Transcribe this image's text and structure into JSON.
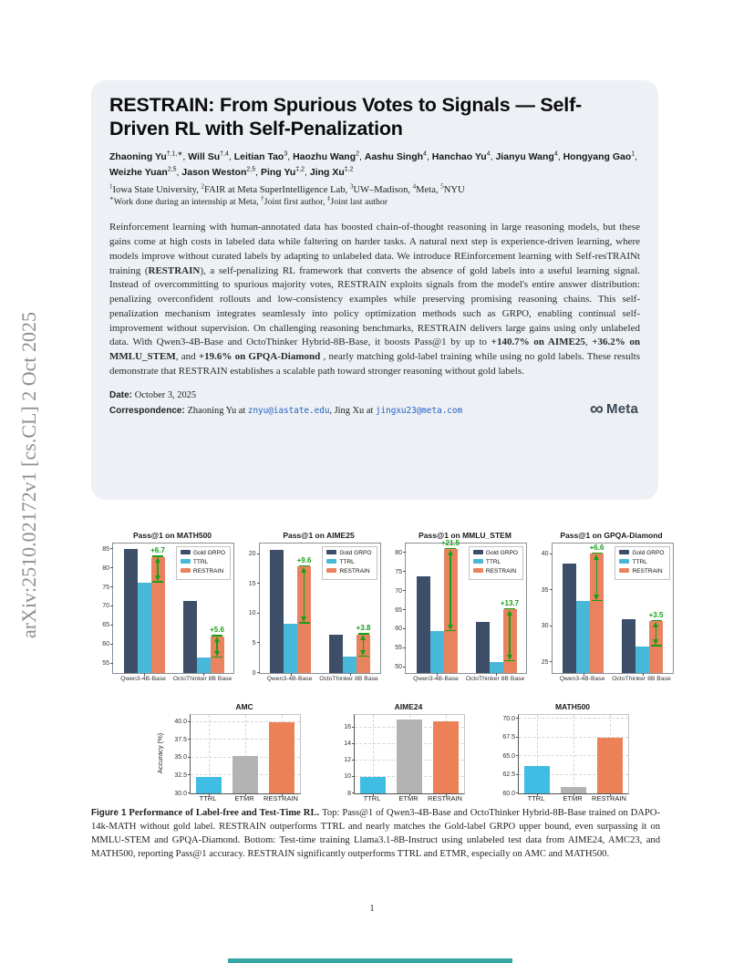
{
  "page": {
    "number": "1"
  },
  "sidebar": {
    "arxiv_label": "arXiv:2510.02172v1  [cs.CL]  2 Oct 2025"
  },
  "header": {
    "title": "RESTRAIN: From Spurious Votes to Signals — Self-Driven RL with Self-Penalization",
    "authors": [
      {
        "name": "Zhaoning Yu",
        "sup": "†,1,∗"
      },
      {
        "name": "Will Su",
        "sup": "†,4"
      },
      {
        "name": "Leitian Tao",
        "sup": "3"
      },
      {
        "name": "Haozhu Wang",
        "sup": "2"
      },
      {
        "name": "Aashu Singh",
        "sup": "4"
      },
      {
        "name": "Hanchao Yu",
        "sup": "4"
      },
      {
        "name": "Jianyu Wang",
        "sup": "4"
      },
      {
        "name": "Hongyang Gao",
        "sup": "1"
      },
      {
        "name": "Weizhe Yuan",
        "sup": "2,5"
      },
      {
        "name": "Jason Weston",
        "sup": "2,5"
      },
      {
        "name": "Ping Yu",
        "sup": "‡,2"
      },
      {
        "name": "Jing Xu",
        "sup": "‡,2"
      }
    ],
    "affiliations": [
      {
        "sup": "1",
        "text": "Iowa State University, "
      },
      {
        "sup": "2",
        "text": "FAIR at Meta SuperIntelligence Lab, "
      },
      {
        "sup": "3",
        "text": "UW–Madison, "
      },
      {
        "sup": "4",
        "text": "Meta, "
      },
      {
        "sup": "5",
        "text": "NYU"
      }
    ],
    "footnote": [
      {
        "sup": "∗",
        "text": "Work done during an internship at Meta, "
      },
      {
        "sup": "†",
        "text": "Joint first author, "
      },
      {
        "sup": "‡",
        "text": "Joint last author"
      }
    ],
    "abstract": [
      {
        "bold": false,
        "text": "Reinforcement learning with human-annotated data has boosted chain-of-thought reasoning in large reasoning models, but these gains come at high costs in labeled data while faltering on harder tasks. A natural next step is experience-driven learning, where models improve without curated labels by adapting to unlabeled data. We introduce REinforcement learning with Self-resTRAINt training ("
      },
      {
        "bold": true,
        "text": "RESTRAIN"
      },
      {
        "bold": false,
        "text": "), a self-penalizing RL framework that converts the absence of gold labels into a useful learning signal. Instead of overcommitting to spurious majority votes, RESTRAIN exploits signals from the model's entire answer distribution: penalizing overconfident rollouts and low-consistency examples while preserving promising reasoning chains. This self-penalization mechanism integrates seamlessly into policy optimization methods such as GRPO, enabling continual self-improvement without supervision. On challenging reasoning benchmarks, RESTRAIN delivers large gains using only unlabeled data. With Qwen3-4B-Base and OctoThinker Hybrid-8B-Base, it boosts Pass@1 by up to "
      },
      {
        "bold": true,
        "text": "+140.7% on AIME25"
      },
      {
        "bold": false,
        "text": ", "
      },
      {
        "bold": true,
        "text": "+36.2% on MMLU_STEM"
      },
      {
        "bold": false,
        "text": ", and "
      },
      {
        "bold": true,
        "text": "+19.6% on GPQA-Diamond"
      },
      {
        "bold": false,
        "text": " , nearly matching gold-label training while using no gold labels. These results demonstrate that RESTRAIN establishes a scalable path toward stronger reasoning without gold labels."
      }
    ],
    "date_label": "Date:",
    "date_value": "October 3, 2025",
    "correspondence_label": "Correspondence:",
    "correspondence": [
      {
        "style": "serif",
        "text": "Zhaoning Yu at "
      },
      {
        "style": "email",
        "text": "znyu@iastate.edu"
      },
      {
        "style": "serif",
        "text": ", Jing Xu at "
      },
      {
        "style": "email",
        "text": "jingxu23@meta.com"
      }
    ],
    "meta_logo_text": "Meta",
    "meta_logo_icon": "infinity-icon"
  },
  "colors": {
    "card_bg": "#edf0f4",
    "gold_grpo": "#3d4f68",
    "ttrl": "#47b8d8",
    "restrain": "#e9835f",
    "etmr_gray": "#b0b0b0",
    "annotation_green": "#16a016",
    "email_blue": "#2563c4",
    "arxiv_gray": "#8f8f8f",
    "bottom_strip": "#35a8a3"
  },
  "chart_data": [
    {
      "type": "bar",
      "row": "top",
      "title": "Pass@1 on MATH500",
      "categories": [
        "Qwen3-4B-Base",
        "OctoThinker 8B Base"
      ],
      "series": [
        {
          "name": "Gold GRPO",
          "color": "#3d4f68",
          "values": [
            85.0,
            71.5
          ]
        },
        {
          "name": "TTRL",
          "color": "#47b8d8",
          "values": [
            76.3,
            56.5
          ]
        },
        {
          "name": "RESTRAIN",
          "color": "#e9835f",
          "values": [
            83.0,
            62.1
          ]
        }
      ],
      "annotations": [
        {
          "group": 0,
          "label": "+6.7"
        },
        {
          "group": 1,
          "label": "+5.6"
        }
      ],
      "ylim": [
        52.5,
        86.5
      ],
      "yticks": [
        {
          "v": 55,
          "label": "55"
        },
        {
          "v": 60,
          "label": "60"
        },
        {
          "v": 65,
          "label": "65"
        },
        {
          "v": 70,
          "label": "70"
        },
        {
          "v": 75,
          "label": "75"
        },
        {
          "v": 80,
          "label": "80"
        },
        {
          "v": 85,
          "label": "85"
        }
      ],
      "legend_position": "top-right",
      "grid": false
    },
    {
      "type": "bar",
      "row": "top",
      "title": "Pass@1 on AIME25",
      "categories": [
        "Qwen3-4B-Base",
        "OctoThinker 8B Base"
      ],
      "series": [
        {
          "name": "Gold GRPO",
          "color": "#3d4f68",
          "values": [
            20.8,
            6.4
          ]
        },
        {
          "name": "TTRL",
          "color": "#47b8d8",
          "values": [
            8.3,
            2.7
          ]
        },
        {
          "name": "RESTRAIN",
          "color": "#e9835f",
          "values": [
            17.9,
            6.5
          ]
        }
      ],
      "annotations": [
        {
          "group": 0,
          "label": "+9.6"
        },
        {
          "group": 1,
          "label": "+3.8"
        }
      ],
      "ylim": [
        0,
        21.8
      ],
      "yticks": [
        {
          "v": 0,
          "label": "0"
        },
        {
          "v": 5,
          "label": "5"
        },
        {
          "v": 10,
          "label": "10"
        },
        {
          "v": 15,
          "label": "15"
        },
        {
          "v": 20,
          "label": "20"
        }
      ],
      "legend_position": "top-right",
      "grid": false
    },
    {
      "type": "bar",
      "row": "top",
      "title": "Pass@1 on MMLU_STEM",
      "categories": [
        "Qwen3-4B-Base",
        "OctoThinker 8B Base"
      ],
      "series": [
        {
          "name": "Gold GRPO",
          "color": "#3d4f68",
          "values": [
            74.0,
            62.0
          ]
        },
        {
          "name": "TTRL",
          "color": "#47b8d8",
          "values": [
            59.5,
            51.5
          ]
        },
        {
          "name": "RESTRAIN",
          "color": "#e9835f",
          "values": [
            81.0,
            65.2
          ]
        }
      ],
      "annotations": [
        {
          "group": 0,
          "label": "+21.5"
        },
        {
          "group": 1,
          "label": "+13.7"
        }
      ],
      "ylim": [
        48.5,
        82.5
      ],
      "yticks": [
        {
          "v": 50,
          "label": "50"
        },
        {
          "v": 55,
          "label": "55"
        },
        {
          "v": 60,
          "label": "60"
        },
        {
          "v": 65,
          "label": "65"
        },
        {
          "v": 70,
          "label": "70"
        },
        {
          "v": 75,
          "label": "75"
        },
        {
          "v": 80,
          "label": "80"
        }
      ],
      "legend_position": "top-right",
      "grid": false
    },
    {
      "type": "bar",
      "row": "top",
      "title": "Pass@1 on GPQA-Diamond",
      "categories": [
        "Qwen3-4B-Base",
        "OctoThinker 8B Base"
      ],
      "series": [
        {
          "name": "Gold GRPO",
          "color": "#3d4f68",
          "values": [
            38.7,
            31.0
          ]
        },
        {
          "name": "TTRL",
          "color": "#47b8d8",
          "values": [
            33.5,
            27.2
          ]
        },
        {
          "name": "RESTRAIN",
          "color": "#e9835f",
          "values": [
            40.1,
            30.7
          ]
        }
      ],
      "annotations": [
        {
          "group": 0,
          "label": "+6.6"
        },
        {
          "group": 1,
          "label": "+3.5"
        }
      ],
      "ylim": [
        23.5,
        41.5
      ],
      "yticks": [
        {
          "v": 25,
          "label": "25"
        },
        {
          "v": 30,
          "label": "30"
        },
        {
          "v": 35,
          "label": "35"
        },
        {
          "v": 40,
          "label": "40"
        }
      ],
      "legend_position": "top-right",
      "grid": false
    },
    {
      "type": "bar",
      "row": "bottom",
      "title": "AMC",
      "categories": [
        "TTRL",
        "ETMR",
        "RESTRAIN"
      ],
      "values": [
        32.3,
        35.3,
        40.0
      ],
      "bar_colors": [
        "#3fbde4",
        "#b3b3b3",
        "#ec8157"
      ],
      "ylabel": "Accuracy (%)",
      "ylim": [
        30,
        41
      ],
      "yticks": [
        {
          "v": 30,
          "label": "30.0"
        },
        {
          "v": 32.5,
          "label": "32.5"
        },
        {
          "v": 35,
          "label": "35.0"
        },
        {
          "v": 37.5,
          "label": "37.5"
        },
        {
          "v": 40,
          "label": "40.0"
        }
      ],
      "grid": true
    },
    {
      "type": "bar",
      "row": "bottom",
      "title": "AIME24",
      "categories": [
        "TTRL",
        "ETMR",
        "RESTRAIN"
      ],
      "values": [
        10.0,
        16.9,
        16.7
      ],
      "bar_colors": [
        "#3fbde4",
        "#b3b3b3",
        "#ec8157"
      ],
      "ylabel": "",
      "ylim": [
        8,
        17.5
      ],
      "yticks": [
        {
          "v": 8,
          "label": "8"
        },
        {
          "v": 10,
          "label": "10"
        },
        {
          "v": 12,
          "label": "12"
        },
        {
          "v": 14,
          "label": "14"
        },
        {
          "v": 16,
          "label": "16"
        }
      ],
      "grid": true
    },
    {
      "type": "bar",
      "row": "bottom",
      "title": "MATH500",
      "categories": [
        "TTRL",
        "ETMR",
        "RESTRAIN"
      ],
      "values": [
        63.7,
        60.9,
        67.4
      ],
      "bar_colors": [
        "#3fbde4",
        "#b3b3b3",
        "#ec8157"
      ],
      "ylabel": "",
      "ylim": [
        60,
        70.5
      ],
      "yticks": [
        {
          "v": 60,
          "label": "60.0"
        },
        {
          "v": 62.5,
          "label": "62.5"
        },
        {
          "v": 65,
          "label": "65.0"
        },
        {
          "v": 67.5,
          "label": "67.5"
        },
        {
          "v": 70,
          "label": "70.0"
        }
      ],
      "grid": true
    }
  ],
  "figure": {
    "caption": [
      {
        "style": "label",
        "text": "Figure 1  "
      },
      {
        "style": "bold",
        "text": "Performance of Label-free and Test-Time RL. "
      },
      {
        "style": "normal",
        "text": "Top: Pass@1 of Qwen3-4B-Base and OctoThinker Hybrid-8B-Base trained on DAPO-14k-MATH without gold label. RESTRAIN outperforms TTRL and nearly matches the Gold-label GRPO upper bound, even surpassing it on MMLU-STEM and GPQA-Diamond. Bottom: Test-time training Llama3.1-8B-Instruct using unlabeled test data from AIME24, AMC23, and MATH500, reporting Pass@1 accuracy. RESTRAIN significantly outperforms TTRL and ETMR, especially on AMC and MATH500."
      }
    ]
  }
}
